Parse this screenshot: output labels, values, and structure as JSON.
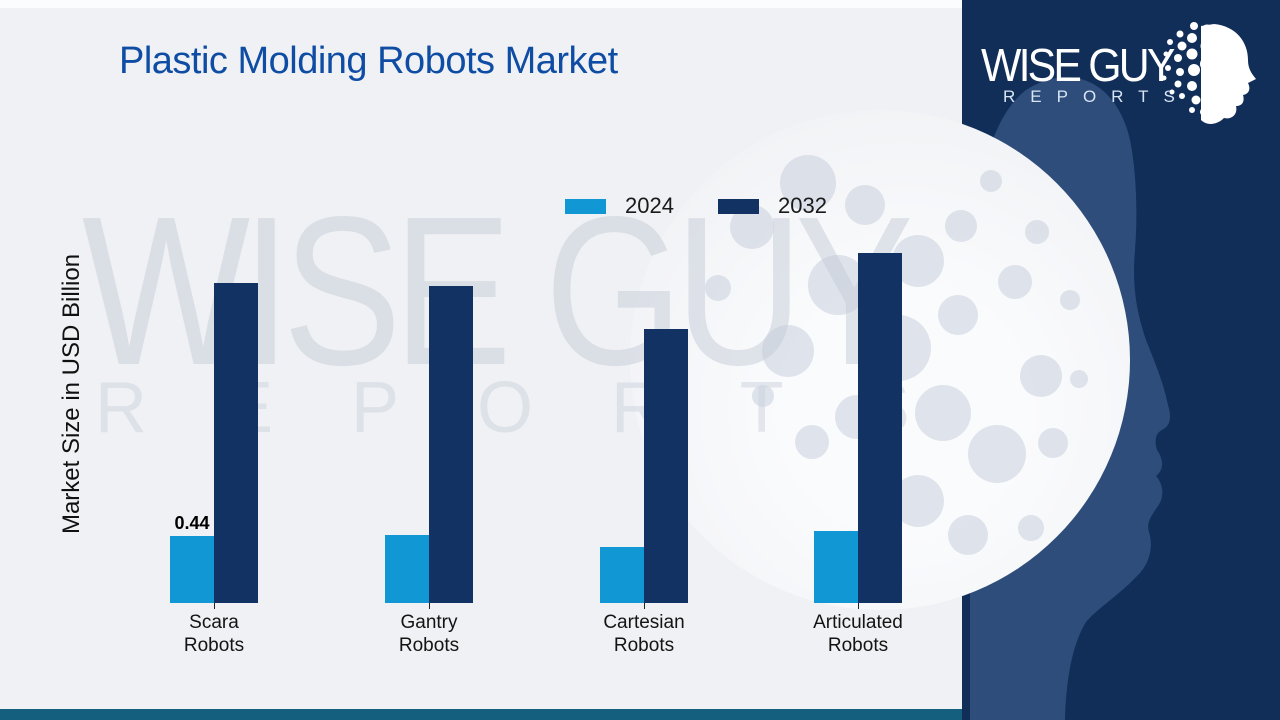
{
  "header": {
    "title": "Plastic Molding Robots Market",
    "title_color": "#0e4da3"
  },
  "watermark": {
    "line1": "WISE GUY",
    "line2": "REPORTS"
  },
  "brand": {
    "logo_line1": "WISE GUY",
    "logo_line2": "REPORTS",
    "panel_color": "#112e59",
    "footer_color": "#155f7e",
    "face_silhouette_color": "#2e4d7a"
  },
  "chart_data": {
    "type": "bar",
    "title": "Plastic Molding Robots Market",
    "ylabel": "Market Size in USD Billion",
    "categories": [
      "Scara Robots",
      "Gantry Robots",
      "Cartesian Robots",
      "Articulated Robots"
    ],
    "series": [
      {
        "name": "2024",
        "color": "#1297d5",
        "values": [
          0.44,
          0.45,
          0.37,
          0.47
        ]
      },
      {
        "name": "2032",
        "color": "#123263",
        "values": [
          2.1,
          2.08,
          1.8,
          2.3
        ]
      }
    ],
    "value_labels": [
      {
        "series": "2024",
        "category_index": 0,
        "text": "0.44"
      }
    ],
    "ylim": [
      0,
      2.5
    ],
    "grid": false,
    "legend_position": "top-right"
  }
}
